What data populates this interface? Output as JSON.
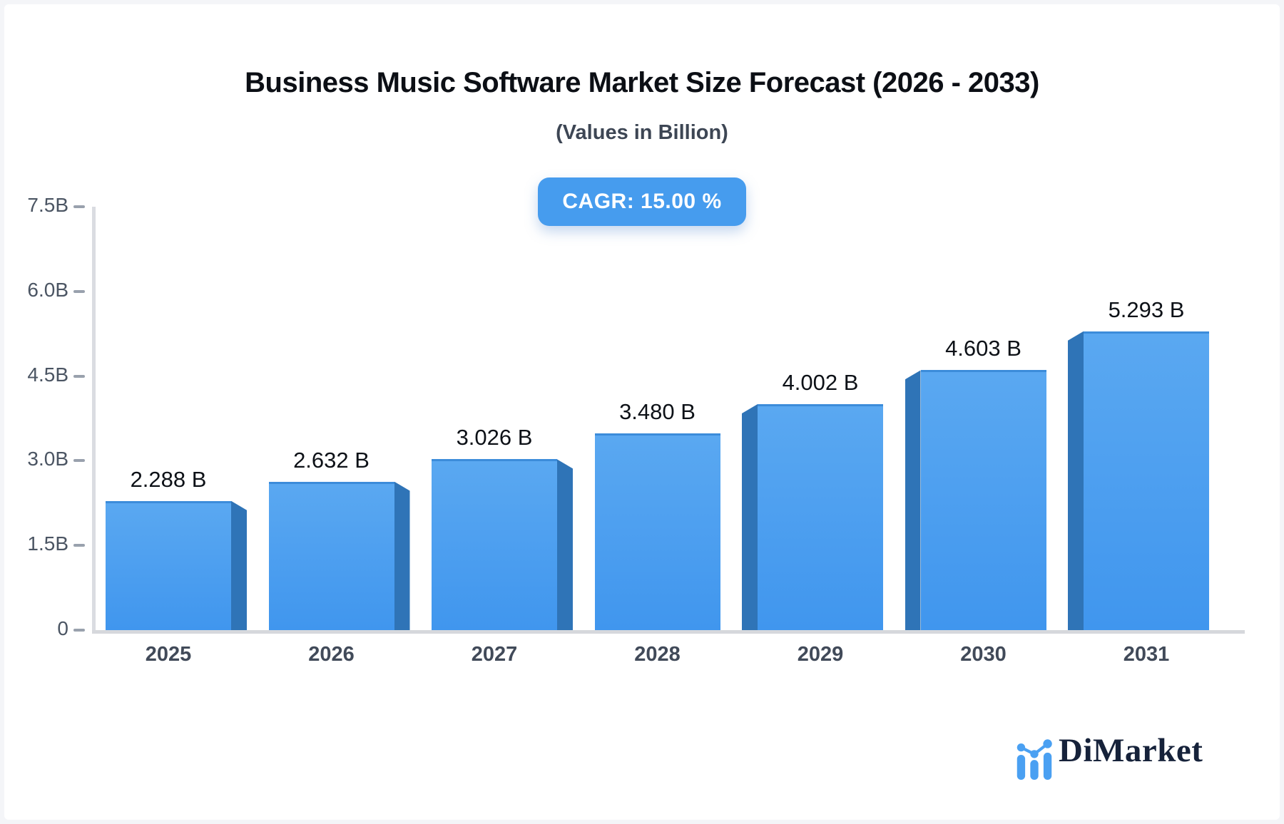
{
  "header": {
    "title": "Business Music Software Market Size Forecast (2026 - 2033)",
    "subtitle": "(Values in Billion)",
    "badge_label": "CAGR: 15.00 %"
  },
  "brand": {
    "name": "DiMarket",
    "icon": "bar-line-chart-icon",
    "icon_color": "#4aa0f2",
    "text_color": "#16223a"
  },
  "chart_data": {
    "type": "bar",
    "title": "Business Music Software Market Size Forecast (2026 - 2033)",
    "subtitle": "(Values in Billion)",
    "cagr": "15.00%",
    "categories": [
      "2025",
      "2026",
      "2027",
      "2028",
      "2029",
      "2030",
      "2031"
    ],
    "values": [
      2.288,
      2.632,
      3.026,
      3.48,
      4.002,
      4.603,
      5.293
    ],
    "value_labels": [
      "2.288 B",
      "2.632 B",
      "3.026 B",
      "3.480 B",
      "4.002 B",
      "4.603 B",
      "5.293 B"
    ],
    "unit": "Billion",
    "ylim": [
      0,
      7.5
    ],
    "y_ticks": [
      {
        "value": 7.5,
        "label": "7.5B"
      },
      {
        "value": 6.0,
        "label": "6.0B"
      },
      {
        "value": 4.5,
        "label": "4.5B"
      },
      {
        "value": 3.0,
        "label": "3.0B"
      },
      {
        "value": 1.5,
        "label": "1.5B"
      },
      {
        "value": 0,
        "label": "0"
      }
    ],
    "grid": false,
    "legend": "none",
    "bar_color_top": "#5aa8f1",
    "bar_color_bottom": "#4096ee",
    "bar_side_color": "#2f74b7",
    "accent_color": "#469cee"
  }
}
